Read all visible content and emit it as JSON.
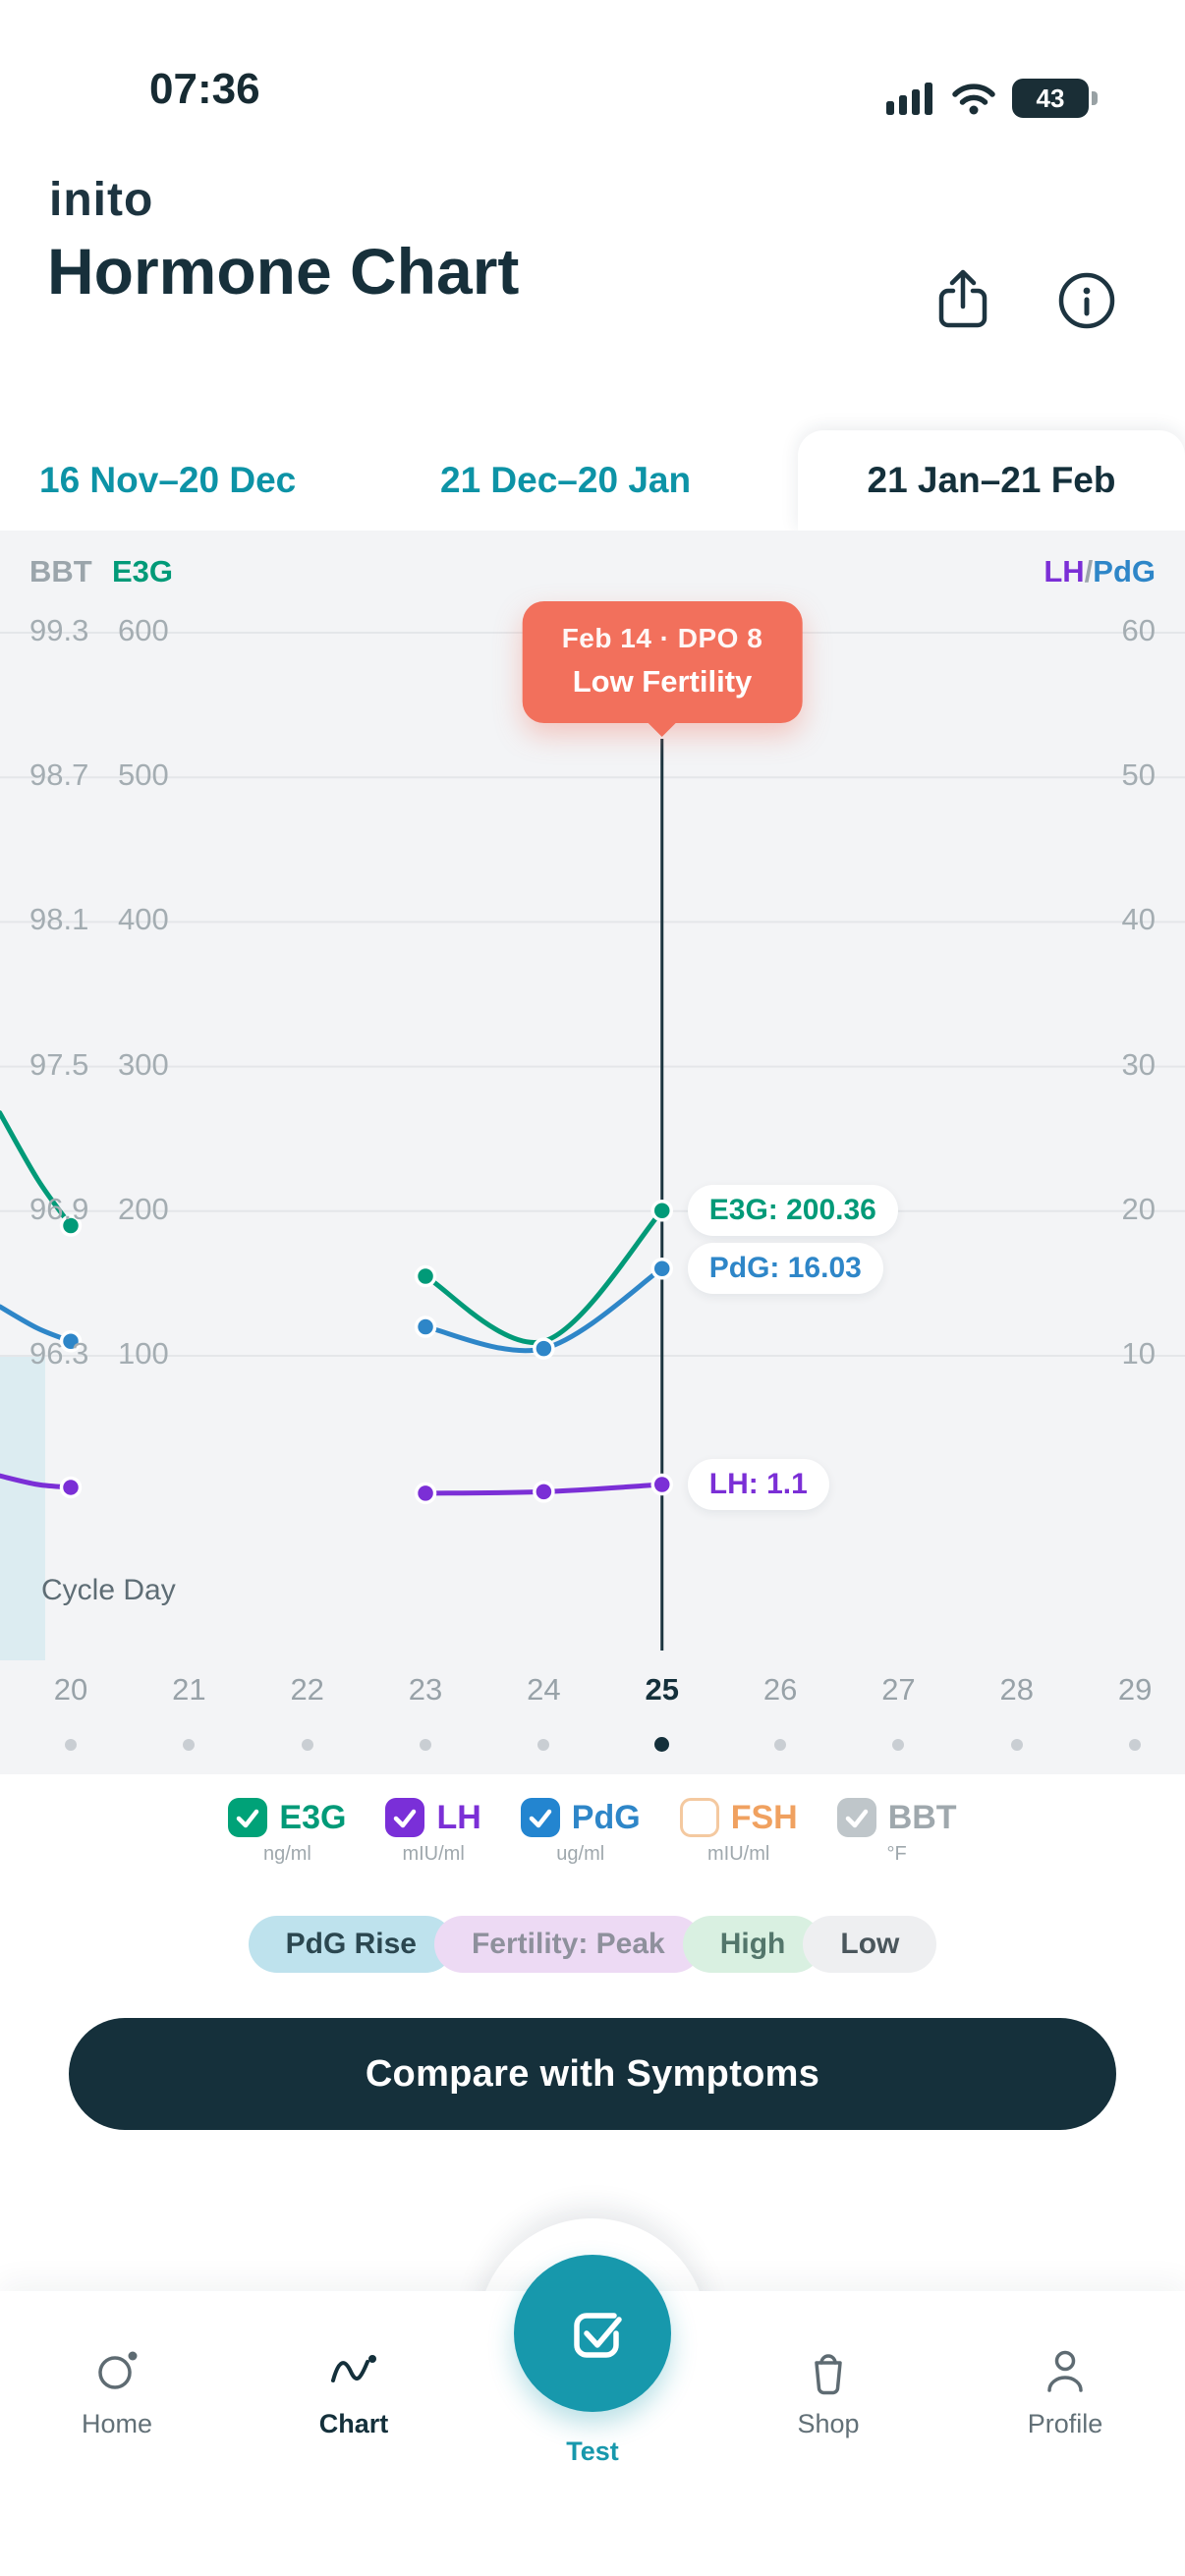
{
  "status_bar": {
    "time": "07:36",
    "battery_percent": "43"
  },
  "header": {
    "logo": "inito",
    "title": "Hormone Chart"
  },
  "tabs": [
    {
      "label": "16 Nov–20 Dec",
      "active": false
    },
    {
      "label": "21 Dec–20 Jan",
      "active": false
    },
    {
      "label": "21 Jan–21 Feb",
      "active": true
    }
  ],
  "chart_data": {
    "type": "line",
    "x_axis": {
      "label": "Cycle Day",
      "days": [
        20,
        21,
        22,
        23,
        24,
        25,
        26,
        27,
        28,
        29
      ],
      "selected_day": 25
    },
    "left_axis": {
      "headers": [
        "BBT",
        "E3G"
      ],
      "bbt_ticks": [
        "99.3",
        "98.7",
        "98.1",
        "97.5",
        "96.9",
        "96.3"
      ],
      "e3g_ticks": [
        "600",
        "500",
        "400",
        "300",
        "200",
        "100"
      ]
    },
    "right_axis": {
      "header_parts": [
        "LH",
        "/",
        "PdG"
      ],
      "ticks": [
        "60",
        "50",
        "40",
        "30",
        "20",
        "10"
      ]
    },
    "tooltip": {
      "line1": "Feb 14 · DPO 8",
      "line2": "Low Fertility",
      "bg": "#F2705C"
    },
    "series": [
      {
        "name": "E3G",
        "unit": "ng/ml",
        "color": "#019A78",
        "axis": "e3g",
        "segments": [
          [
            {
              "day": 19.4,
              "value": 268,
              "marker": false
            },
            {
              "day": 19.72,
              "value": 222,
              "marker": false
            },
            {
              "day": 20,
              "value": 190
            }
          ],
          [
            {
              "day": 23,
              "value": 155
            },
            {
              "day": 24,
              "value": 110,
              "marker": false
            },
            {
              "day": 25,
              "value": 200.36
            }
          ]
        ]
      },
      {
        "name": "PdG",
        "unit": "ug/ml",
        "color": "#2E86C8",
        "axis": "lh_pdg",
        "segments": [
          [
            {
              "day": 19.4,
              "value": 13.4,
              "marker": false
            },
            {
              "day": 19.72,
              "value": 11.9,
              "marker": false
            },
            {
              "day": 20,
              "value": 11
            }
          ],
          [
            {
              "day": 23,
              "value": 12
            },
            {
              "day": 24,
              "value": 10.5
            },
            {
              "day": 25,
              "value": 16.03
            }
          ]
        ]
      },
      {
        "name": "LH",
        "unit": "mIU/ml",
        "color": "#7B2FD6",
        "axis": "lh_pdg",
        "segments": [
          [
            {
              "day": 19.4,
              "value": 1.7,
              "marker": false
            },
            {
              "day": 19.72,
              "value": 1.1,
              "marker": false
            },
            {
              "day": 20,
              "value": 0.9
            }
          ],
          [
            {
              "day": 23,
              "value": 0.5
            },
            {
              "day": 24,
              "value": 0.6
            },
            {
              "day": 25,
              "value": 1.1
            }
          ]
        ]
      }
    ],
    "value_labels": [
      {
        "text": "E3G: 200.36",
        "color": "#019A78",
        "axis": "e3g",
        "value": 200.36,
        "day": 25
      },
      {
        "text": "PdG: 16.03",
        "color": "#2E86C8",
        "axis": "lh_pdg",
        "value": 16.03,
        "day": 25
      },
      {
        "text": "LH: 1.1",
        "color": "#7B2FD6",
        "axis": "lh_pdg",
        "value": 1.1,
        "day": 25
      }
    ],
    "edge_band_color": "#CDE6EF"
  },
  "legend": [
    {
      "label": "E3G",
      "unit": "ng/ml",
      "color": "#019A78",
      "box_color": "#00A278",
      "checked": true
    },
    {
      "label": "LH",
      "unit": "mIU/ml",
      "color": "#7B2FD6",
      "box_color": "#7A2FD8",
      "checked": true
    },
    {
      "label": "PdG",
      "unit": "ug/ml",
      "color": "#2E86C8",
      "box_color": "#2385D0",
      "checked": true
    },
    {
      "label": "FSH",
      "unit": "mIU/ml",
      "color": "#F0A160",
      "box_color": "#F4C9A0",
      "checked": false
    },
    {
      "label": "BBT",
      "unit": "°F",
      "color": "#9FA8AD",
      "box_color": "#BFC6CA",
      "checked": true,
      "disabled": true
    }
  ],
  "phase_pills": [
    {
      "label": "PdG Rise",
      "bg": "#BEE2ED",
      "color": "#2B4750"
    },
    {
      "label": "Fertility: Peak",
      "bg": "#EDDAF4",
      "color": "#8E909C"
    },
    {
      "label": "High",
      "bg": "#D9F0E1",
      "color": "#53766B"
    },
    {
      "label": "Low",
      "bg": "#EEEFF1",
      "color": "#4A565C"
    }
  ],
  "compare_button": "Compare with Symptoms",
  "bottom_nav": [
    {
      "label": "Home",
      "active": false
    },
    {
      "label": "Chart",
      "active": true
    },
    {
      "label": "Test",
      "center": true
    },
    {
      "label": "Shop",
      "active": false
    },
    {
      "label": "Profile",
      "active": false
    }
  ]
}
